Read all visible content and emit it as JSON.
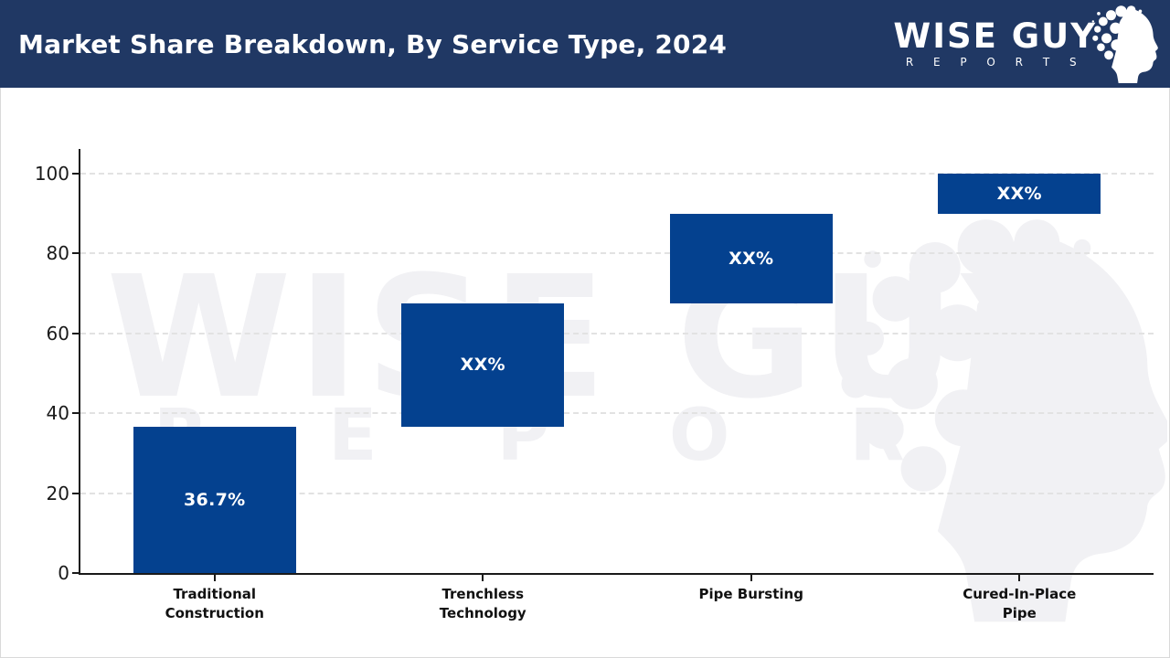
{
  "header": {
    "title": "Market Share Breakdown, By Service Type, 2024",
    "logo": {
      "name_line": "WISE GUY",
      "sub_line": "R E P O R T S"
    }
  },
  "watermark": {
    "name_line": "WISE GUY",
    "sub_line": "R E P O R T S"
  },
  "chart_data": {
    "type": "bar",
    "subtype": "waterfall",
    "title": "Market Share Breakdown, By Service Type, 2024",
    "categories": [
      "Traditional\nConstruction",
      "Trenchless\nTechnology",
      "Pipe Bursting",
      "Cured-In-Place\nPipe"
    ],
    "series": [
      {
        "name": "Market Share (%)",
        "segments": [
          [
            0,
            36.7
          ],
          [
            36.7,
            67.5
          ],
          [
            67.5,
            90
          ],
          [
            90,
            100
          ]
        ],
        "labels": [
          "36.7%",
          "XX%",
          "XX%",
          "XX%"
        ]
      }
    ],
    "yticks": [
      0,
      20,
      40,
      60,
      80,
      100
    ],
    "ylim": [
      0,
      106
    ],
    "xlabel": "",
    "ylabel": "",
    "legend": "none",
    "grid": "horizontal-dashed",
    "colors": {
      "bar": "#04418f",
      "bar_label": "#ffffff",
      "axis": "#1a1a1a",
      "grid": "#e2e2e2",
      "tick_label": "#1a1a1a",
      "header_bg": "#203864",
      "watermark": "#f1f1f4"
    }
  }
}
